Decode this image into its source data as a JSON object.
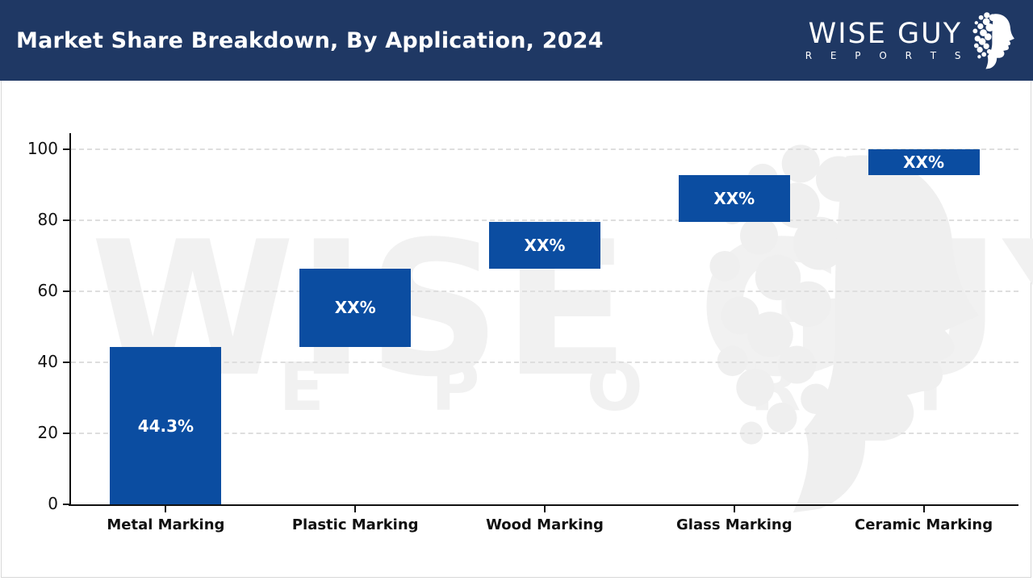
{
  "header": {
    "title": "Market Share Breakdown, By Application, 2024",
    "bg_color": "#1f3864",
    "logo": {
      "line1": "WISE GUY",
      "line2": "R E P O R T S"
    }
  },
  "watermark": {
    "line1": "WISE GUY",
    "line2": "R E P O R T S"
  },
  "colors": {
    "bar": "#0b4da1",
    "bar_label": "#ffffff",
    "header_bg": "#1f3864",
    "gridline": "#dedede",
    "axis": "#111111",
    "watermark": "#f1f1f1",
    "frame_border": "#d8d8d8"
  },
  "chart_data": {
    "type": "bar",
    "subtype": "waterfall",
    "title": "Market Share Breakdown, By Application, 2024",
    "xlabel": "",
    "ylabel": "",
    "ylim": [
      0,
      100
    ],
    "yticks": [
      0,
      20,
      40,
      60,
      80,
      100
    ],
    "grid": "horizontal-dashed",
    "legend": "none",
    "categories": [
      "Metal Marking",
      "Plastic Marking",
      "Wood Marking",
      "Glass Marking",
      "Ceramic Marking"
    ],
    "segments": [
      {
        "category": "Metal Marking",
        "start": 0,
        "end": 44.3,
        "value": 44.3,
        "label": "44.3%"
      },
      {
        "category": "Plastic Marking",
        "start": 44.3,
        "end": 66.4,
        "value": 22.1,
        "label": "XX%"
      },
      {
        "category": "Wood Marking",
        "start": 66.4,
        "end": 79.5,
        "value": 13.1,
        "label": "XX%"
      },
      {
        "category": "Glass Marking",
        "start": 79.5,
        "end": 92.7,
        "value": 13.2,
        "label": "XX%"
      },
      {
        "category": "Ceramic Marking",
        "start": 92.7,
        "end": 100,
        "value": 7.3,
        "label": "XX%"
      }
    ]
  }
}
